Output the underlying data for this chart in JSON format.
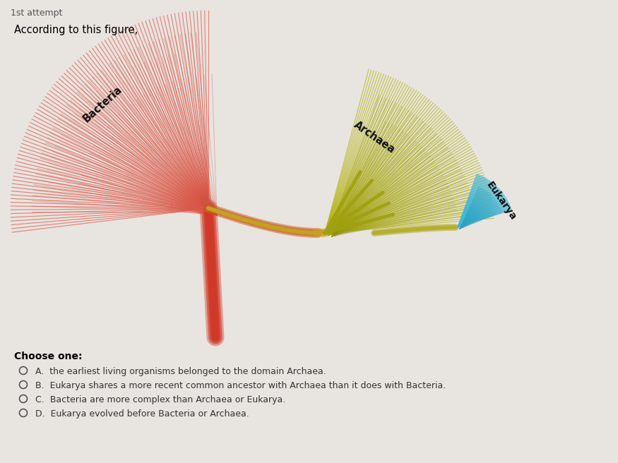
{
  "bg_color": "#e8e4e0",
  "title": "According to this figure,",
  "header": "1st attempt",
  "bacteria_label": "Bacteria",
  "archaea_label": "Archaea",
  "eukarya_label": "Eukarya",
  "bacteria_color": "#e05040",
  "bacteria_color2": "#d06050",
  "archaea_color": "#b8b820",
  "archaea_color2": "#a0a010",
  "eukarya_color": "#40b8d8",
  "trunk_color": "#d03828",
  "stem_color": "#c89820",
  "choose_one": "Choose one:",
  "options": [
    "A.  the earliest living organisms belonged to the domain Archaea.",
    "B.  Eukarya shares a more recent common ancestor with Archaea than it does with Bacteria.",
    "C.  Bacteria are more complex than Archaea or Eukarya.",
    "D.  Eukarya evolved before Bacteria or Archaea."
  ]
}
